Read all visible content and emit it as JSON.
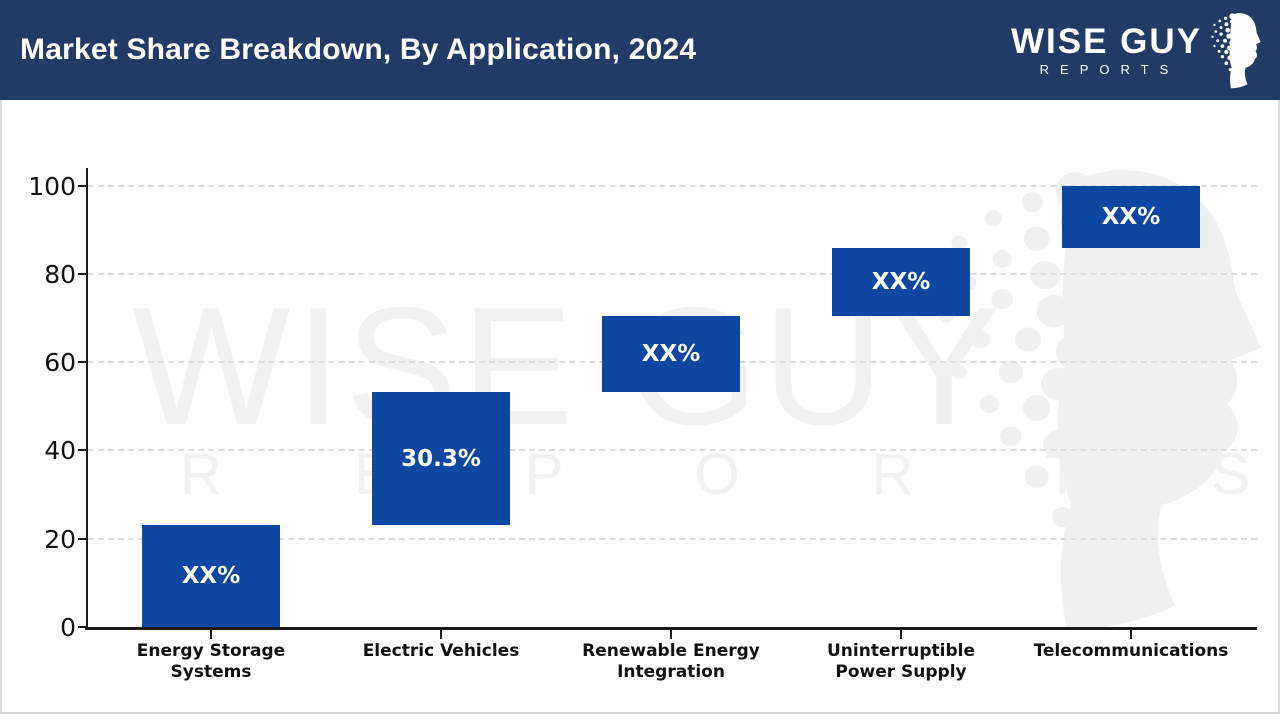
{
  "header": {
    "title": "Market Share Breakdown, By Application, 2024",
    "bg_color": "#213a66",
    "logo": {
      "line1": "WISE GUY",
      "line2": "REPORTS"
    }
  },
  "watermark": {
    "line1": "WISE GUY",
    "line2": "R E P O R T S",
    "color": "#f1f1f1"
  },
  "chart_data": {
    "type": "bar",
    "subtype": "waterfall",
    "title": "Market Share Breakdown, By Application, 2024",
    "xlabel": "",
    "ylabel": "",
    "ylim": [
      0,
      104
    ],
    "yticks": [
      0,
      20,
      40,
      60,
      80,
      100
    ],
    "grid": "horizontal-dashed",
    "legend": "none",
    "bar_color": "#0d47a1",
    "value_label_color": "#ffffff",
    "categories": [
      "Energy Storage Systems",
      "Electric Vehicles",
      "Renewable Energy Integration",
      "Uninterruptible Power Supply",
      "Telecommunications"
    ],
    "bars": [
      {
        "category": "Energy Storage Systems",
        "label": "Energy Storage\nSystems",
        "start": 0,
        "end": 23,
        "value_label": "XX%"
      },
      {
        "category": "Electric Vehicles",
        "label": "Electric Vehicles",
        "start": 23,
        "end": 53.3,
        "value_label": "30.3%"
      },
      {
        "category": "Renewable Energy Integration",
        "label": "Renewable Energy\nIntegration",
        "start": 53.3,
        "end": 70.5,
        "value_label": "XX%"
      },
      {
        "category": "Uninterruptible Power Supply",
        "label": "Uninterruptible\nPower Supply",
        "start": 70.5,
        "end": 85.8,
        "value_label": "XX%"
      },
      {
        "category": "Telecommunications",
        "label": "Telecommunications",
        "start": 85.8,
        "end": 100,
        "value_label": "XX%"
      }
    ]
  }
}
